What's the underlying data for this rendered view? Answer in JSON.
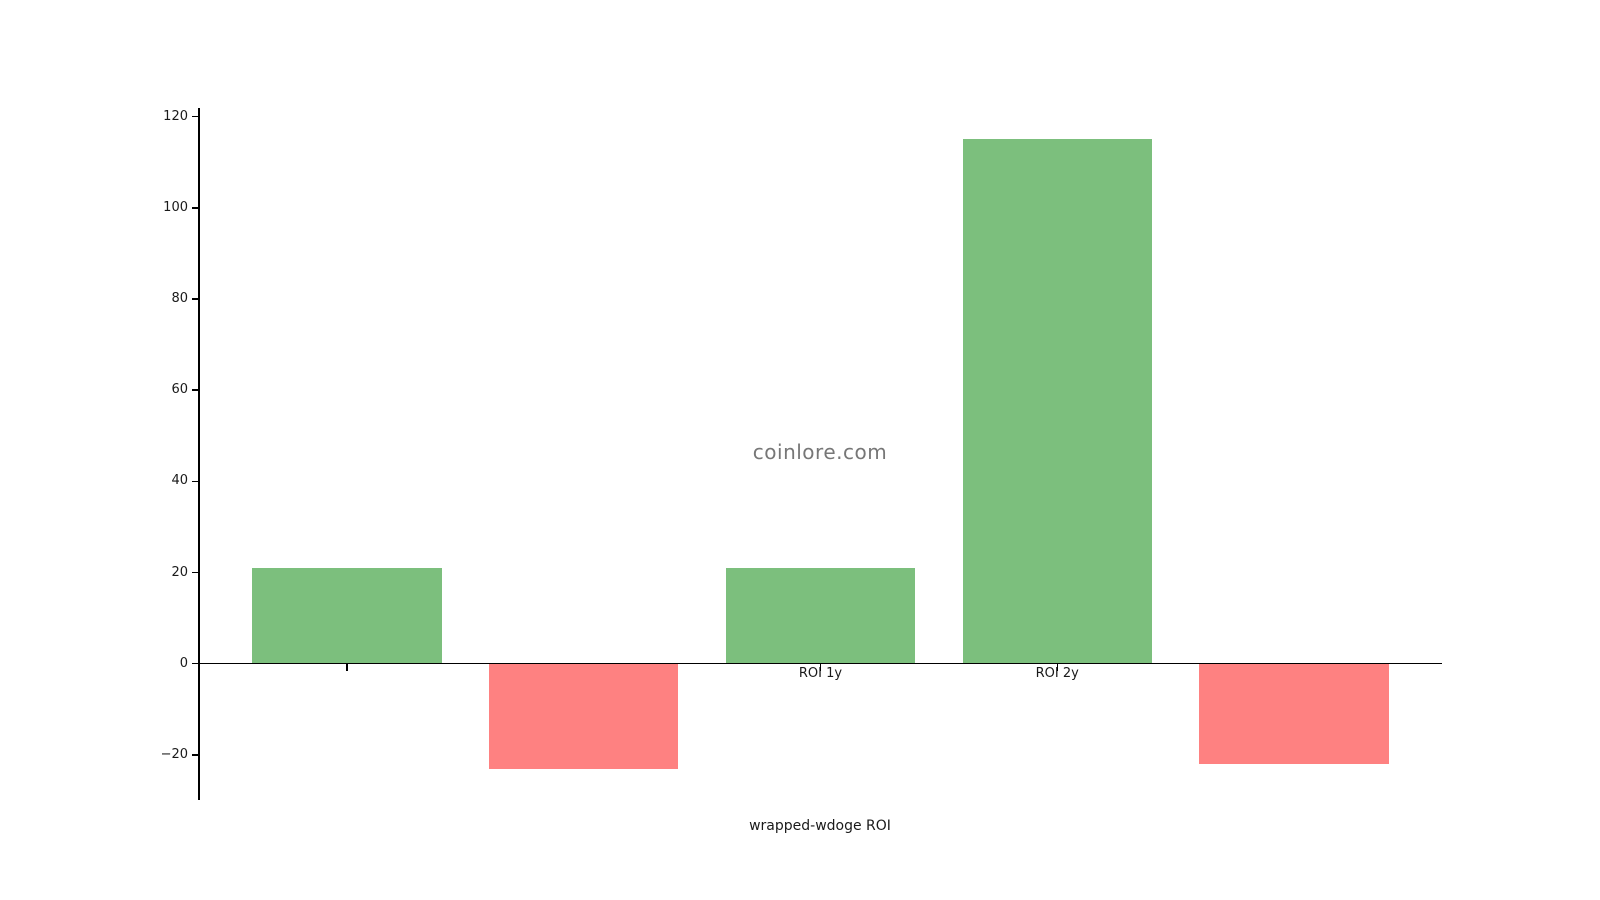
{
  "watermark": {
    "text": "coinlore.com",
    "color": "#777777"
  },
  "chart_data": {
    "type": "bar",
    "title": "",
    "xlabel": "wrapped-wdoge ROI",
    "ylabel": "",
    "categories": [
      "",
      "",
      "ROI 1y",
      "ROI 2y",
      ""
    ],
    "values": [
      21,
      -23,
      21,
      115,
      -22
    ],
    "yticks": [
      120,
      100,
      80,
      60,
      40,
      20,
      0,
      -20
    ],
    "ylim": [
      -29.9,
      121.9
    ],
    "xlim": [
      -0.625,
      4.625
    ],
    "bar_width_fraction": 0.8,
    "grid": false,
    "legend": false,
    "positive_color": "#7cbf7d",
    "negative_color": "#fe8181",
    "axis_color": "#000000",
    "tick_label_color": "#1a1a1a"
  }
}
